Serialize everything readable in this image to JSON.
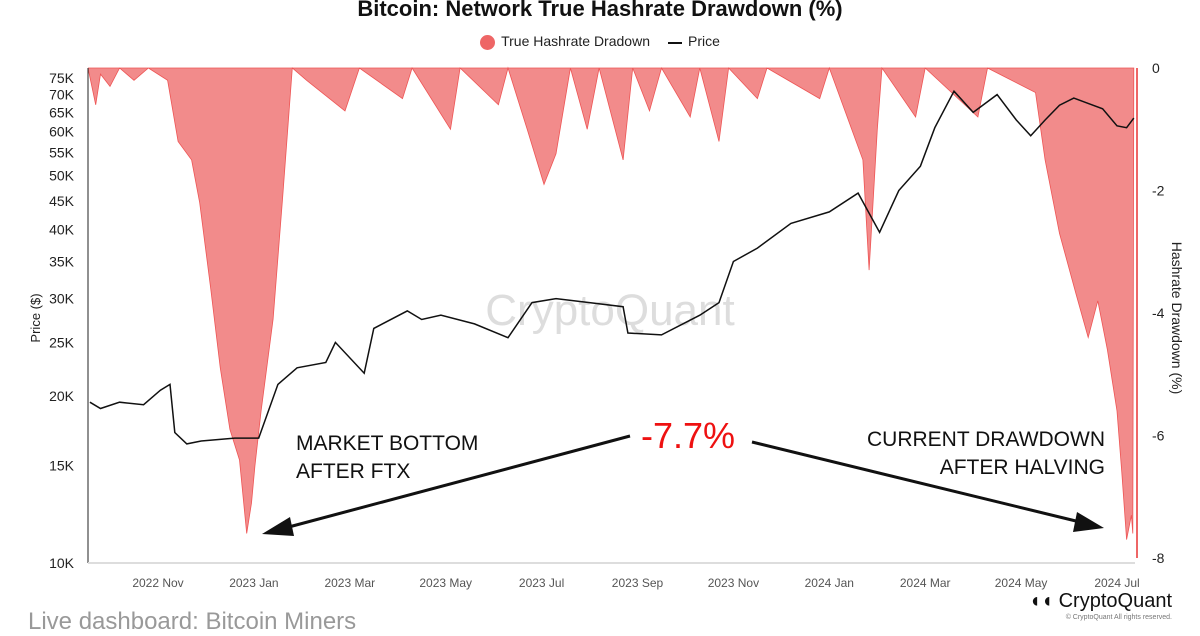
{
  "chart_data": {
    "type": "area",
    "title": "Bitcoin: Network True Hashrate Drawdown (%)",
    "legend": [
      "True Hashrate Dradown",
      "Price"
    ],
    "legend_position": "top",
    "ylabel_left": "Price ($)",
    "ylabel_right": "Hashrate Drawdown (%)",
    "x_unit": "months since 2022 Nov",
    "x_ticks": [
      "2022 Nov",
      "2023 Jan",
      "2023 Mar",
      "2023 May",
      "2023 Jul",
      "2023 Sep",
      "2023 Nov",
      "2024 Jan",
      "2024 Mar",
      "2024 May",
      "2024 Jul"
    ],
    "y_left_ticks": [
      "75K",
      "70K",
      "65K",
      "60K",
      "55K",
      "50K",
      "45K",
      "40K",
      "35K",
      "30K",
      "25K",
      "20K",
      "15K",
      "10K"
    ],
    "y_left_values": [
      75,
      70,
      65,
      60,
      55,
      50,
      45,
      40,
      35,
      30,
      25,
      20,
      15,
      10
    ],
    "y_left_scale": "log",
    "y_right_ticks": [
      "0",
      "-2",
      "-4",
      "-6",
      "-8"
    ],
    "y_right_values": [
      0,
      -2,
      -4,
      -6,
      -8
    ],
    "xlim": [
      -1.46,
      20.4
    ],
    "series": [
      {
        "name": "True Hashrate Dradown",
        "color": "#f28b8b",
        "points": [
          [
            -1.46,
            0
          ],
          [
            -1.3,
            -0.6
          ],
          [
            -1.2,
            -0.1
          ],
          [
            -1.0,
            -0.3
          ],
          [
            -0.8,
            0
          ],
          [
            -0.5,
            -0.2
          ],
          [
            -0.2,
            0
          ],
          [
            0.2,
            -0.2
          ],
          [
            0.42,
            -1.2
          ],
          [
            0.7,
            -1.5
          ],
          [
            0.87,
            -2.2
          ],
          [
            1.1,
            -3.6
          ],
          [
            1.3,
            -4.9
          ],
          [
            1.5,
            -5.9
          ],
          [
            1.7,
            -6.4
          ],
          [
            1.85,
            -7.6
          ],
          [
            1.95,
            -7.1
          ],
          [
            2.02,
            -6.5
          ],
          [
            2.15,
            -5.6
          ],
          [
            2.4,
            -4.1
          ],
          [
            2.6,
            -2.1
          ],
          [
            2.8,
            0
          ],
          [
            3.1,
            -0.2
          ],
          [
            3.9,
            -0.7
          ],
          [
            4.2,
            0
          ],
          [
            5.1,
            -0.5
          ],
          [
            5.3,
            0
          ],
          [
            6.1,
            -1.0
          ],
          [
            6.3,
            0
          ],
          [
            7.1,
            -0.6
          ],
          [
            7.3,
            0
          ],
          [
            7.7,
            -1.0
          ],
          [
            8.05,
            -1.9
          ],
          [
            8.3,
            -1.4
          ],
          [
            8.6,
            0
          ],
          [
            8.95,
            -1.0
          ],
          [
            9.2,
            0
          ],
          [
            9.7,
            -1.5
          ],
          [
            9.9,
            0
          ],
          [
            10.25,
            -0.7
          ],
          [
            10.5,
            0
          ],
          [
            11.1,
            -0.8
          ],
          [
            11.3,
            0
          ],
          [
            11.7,
            -1.2
          ],
          [
            11.9,
            0
          ],
          [
            12.5,
            -0.5
          ],
          [
            12.7,
            0
          ],
          [
            13.8,
            -0.5
          ],
          [
            14.0,
            0
          ],
          [
            14.7,
            -1.5
          ],
          [
            14.83,
            -3.3
          ],
          [
            15.0,
            -1.0
          ],
          [
            15.1,
            0
          ],
          [
            15.8,
            -0.8
          ],
          [
            16.0,
            0
          ],
          [
            17.1,
            -0.8
          ],
          [
            17.3,
            0
          ],
          [
            18.3,
            -0.4
          ],
          [
            18.5,
            -1.5
          ],
          [
            18.8,
            -2.7
          ],
          [
            19.15,
            -3.7
          ],
          [
            19.4,
            -4.4
          ],
          [
            19.6,
            -3.8
          ],
          [
            19.8,
            -4.6
          ],
          [
            20.0,
            -5.6
          ],
          [
            20.1,
            -6.6
          ],
          [
            20.2,
            -7.7
          ],
          [
            20.3,
            -7.3
          ],
          [
            20.33,
            -7.6
          ],
          [
            20.35,
            0
          ]
        ]
      },
      {
        "name": "Price",
        "color": "#111111",
        "points": [
          [
            -1.42,
            19.5
          ],
          [
            -1.2,
            19.0
          ],
          [
            -0.8,
            19.5
          ],
          [
            -0.3,
            19.3
          ],
          [
            0.05,
            20.5
          ],
          [
            0.25,
            21.0
          ],
          [
            0.35,
            17.2
          ],
          [
            0.6,
            16.4
          ],
          [
            0.9,
            16.6
          ],
          [
            1.6,
            16.8
          ],
          [
            2.1,
            16.8
          ],
          [
            2.5,
            21.0
          ],
          [
            2.9,
            22.5
          ],
          [
            3.5,
            23.0
          ],
          [
            3.7,
            25.0
          ],
          [
            4.3,
            22.0
          ],
          [
            4.5,
            26.5
          ],
          [
            5.2,
            28.5
          ],
          [
            5.5,
            27.5
          ],
          [
            5.9,
            28.0
          ],
          [
            6.6,
            27.0
          ],
          [
            7.3,
            25.5
          ],
          [
            7.8,
            29.5
          ],
          [
            8.3,
            30.0
          ],
          [
            9.0,
            29.5
          ],
          [
            9.7,
            29.0
          ],
          [
            9.8,
            26.0
          ],
          [
            10.5,
            25.8
          ],
          [
            11.3,
            28.0
          ],
          [
            11.7,
            29.5
          ],
          [
            12.0,
            35.0
          ],
          [
            12.5,
            37.0
          ],
          [
            13.2,
            41.0
          ],
          [
            14.0,
            43.0
          ],
          [
            14.6,
            46.5
          ],
          [
            15.05,
            39.5
          ],
          [
            15.45,
            47.0
          ],
          [
            15.9,
            52.0
          ],
          [
            16.2,
            61.0
          ],
          [
            16.6,
            71.0
          ],
          [
            17.0,
            65.0
          ],
          [
            17.5,
            70.0
          ],
          [
            17.9,
            63.0
          ],
          [
            18.2,
            59.0
          ],
          [
            18.5,
            63.0
          ],
          [
            18.8,
            67.0
          ],
          [
            19.1,
            69.0
          ],
          [
            19.4,
            67.5
          ],
          [
            19.7,
            66.0
          ],
          [
            20.0,
            61.5
          ],
          [
            20.2,
            61.0
          ],
          [
            20.35,
            63.5
          ]
        ]
      }
    ],
    "annotations": [
      {
        "text_line1": "MARKET BOTTOM",
        "text_line2": "AFTER FTX"
      },
      {
        "text": "-7.7%",
        "color": "#ee1111"
      },
      {
        "text_line1": "CURRENT DRAWDOWN",
        "text_line2": "AFTER HALVING"
      }
    ],
    "watermark": "CryptoQuant"
  },
  "footer": {
    "dashboard_link": "Live dashboard: Bitcoin Miners",
    "logo": "CryptoQuant",
    "copyright": "© CryptoQuant All rights reserved."
  }
}
